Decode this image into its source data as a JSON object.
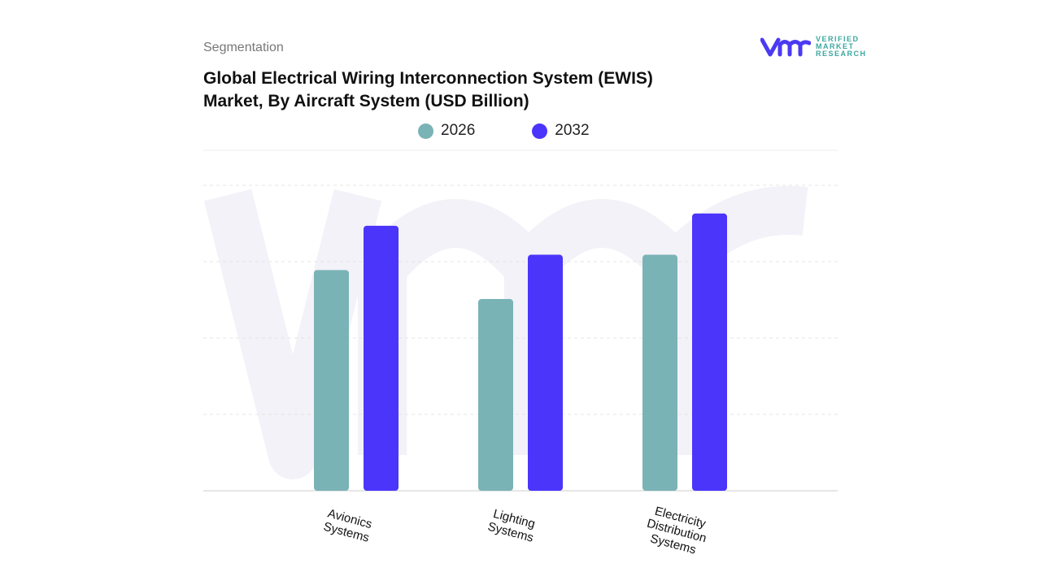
{
  "header": {
    "segment_label": "Segmentation",
    "title": "Global Electrical Wiring Interconnection System (EWIS) Market, By Aircraft System (USD Billion)"
  },
  "logo": {
    "lines": [
      "VERIFIED",
      "MARKET",
      "RESEARCH"
    ],
    "brand_color": "#4b3af2"
  },
  "chart_data": {
    "type": "bar",
    "title": "Global Electrical Wiring Interconnection System (EWIS) Market, By Aircraft System (USD Billion)",
    "categories": [
      [
        "Avionics",
        "Systems"
      ],
      [
        "Lighting",
        "Systems"
      ],
      [
        "Electricity",
        "Distribution",
        "Systems"
      ]
    ],
    "series": [
      {
        "name": "2026",
        "color": "#7ab3b6",
        "values": [
          2.89,
          2.51,
          3.09
        ]
      },
      {
        "name": "2032",
        "color": "#4b35fb",
        "values": [
          3.47,
          3.09,
          3.63
        ]
      }
    ],
    "ylim": [
      0,
      4
    ],
    "grid": true,
    "legend_position": "top-center",
    "y_axis_labels_shown": false
  }
}
